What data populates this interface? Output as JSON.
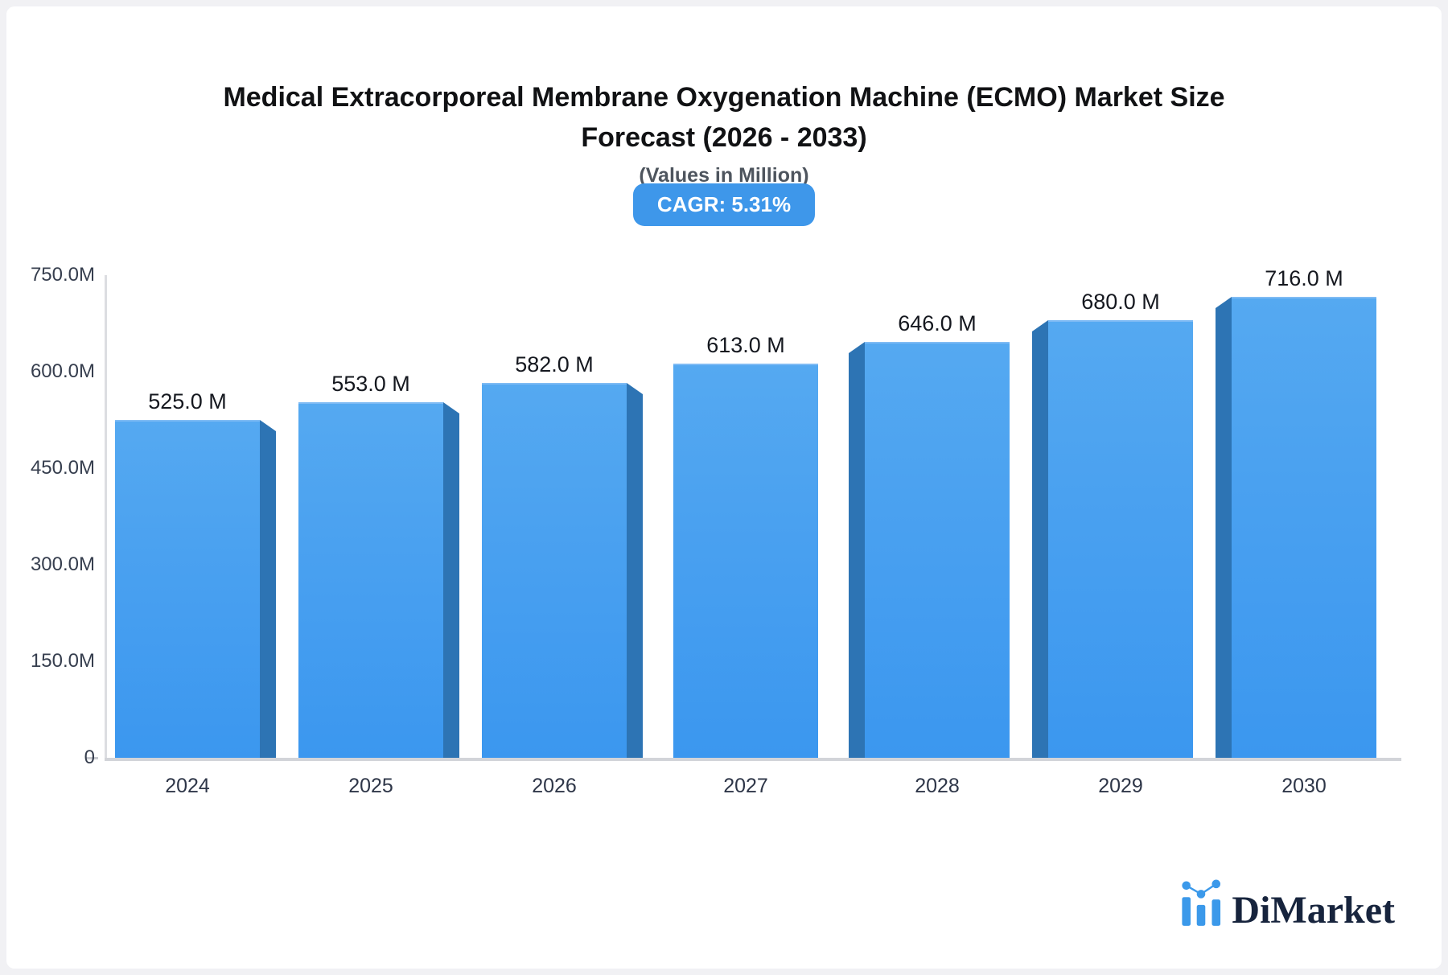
{
  "page": {
    "background": "#f1f1f4",
    "card_background": "#ffffff"
  },
  "header": {
    "title_line1": "Medical Extracorporeal Membrane Oxygenation Machine (ECMO) Market Size",
    "title_line2": "Forecast (2026 - 2033)",
    "subtitle": "(Values in Million)",
    "cagr_label": "CAGR: 5.31%",
    "badge_color": "#3e97ea"
  },
  "chart_data": {
    "type": "bar",
    "title": "Medical Extracorporeal Membrane Oxygenation Machine (ECMO) Market Size Forecast (2026 - 2033)",
    "subtitle": "(Values in Million)",
    "categories": [
      "2024",
      "2025",
      "2026",
      "2027",
      "2028",
      "2029",
      "2030"
    ],
    "values": [
      525,
      553,
      582,
      613,
      646,
      680,
      716
    ],
    "value_labels": [
      "525.0 M",
      "553.0 M",
      "582.0 M",
      "613.0 M",
      "646.0 M",
      "680.0 M",
      "716.0 M"
    ],
    "yticks": [
      {
        "value": 750,
        "label": "750.0M"
      },
      {
        "value": 600,
        "label": "600.0M"
      },
      {
        "value": 450,
        "label": "450.0M"
      },
      {
        "value": 300,
        "label": "300.0M"
      },
      {
        "value": 150,
        "label": "150.0M"
      },
      {
        "value": 0,
        "label": "0"
      }
    ],
    "ylim": [
      0,
      750
    ],
    "xlabel": "",
    "ylabel": "",
    "grid": false,
    "legend": "none",
    "bar_color_top": "#55a9f1",
    "bar_color_bottom": "#3b97ef",
    "bar_side_color": "#2d74b4",
    "axis_line_color": "#d2d4d9"
  },
  "footer": {
    "brand": "DiMarket",
    "brand_color": "#17243d",
    "icon_color": "#3b99ea",
    "icon": "bar-line-chart-icon"
  }
}
